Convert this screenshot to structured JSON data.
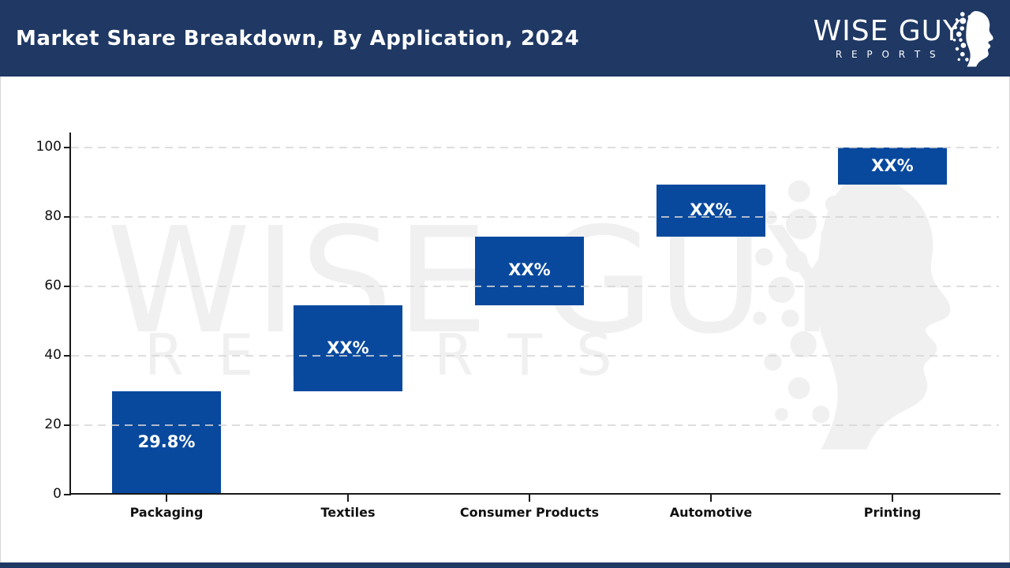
{
  "header": {
    "title": "Market Share Breakdown, By Application, 2024",
    "logo_line1": "WISE GUY",
    "logo_line2": "R E P O R T S"
  },
  "watermark": {
    "line1": "WISE GUY",
    "line2": "R E P O R T S"
  },
  "colors": {
    "header_bg": "#1f3864",
    "bar": "#08499e",
    "bar_label": "#ffffff",
    "axis": "#1a1a1a",
    "grid": "#d9d9d9",
    "watermark": "#f0f0f0"
  },
  "chart_data": {
    "type": "bar",
    "subtype": "waterfall",
    "title": "Market Share Breakdown, By Application, 2024",
    "categories": [
      "Packaging",
      "Textiles",
      "Consumer Products",
      "Automotive",
      "Printing"
    ],
    "segments": [
      {
        "category": "Packaging",
        "start": 0,
        "end": 29.8,
        "label": "29.8%"
      },
      {
        "category": "Textiles",
        "start": 29.8,
        "end": 54.5,
        "label": "XX%"
      },
      {
        "category": "Consumer Products",
        "start": 54.5,
        "end": 74.4,
        "label": "XX%"
      },
      {
        "category": "Automotive",
        "start": 74.4,
        "end": 89.3,
        "label": "XX%"
      },
      {
        "category": "Printing",
        "start": 89.3,
        "end": 100,
        "label": "XX%"
      }
    ],
    "ylim": [
      0,
      100
    ],
    "yticks": [
      0,
      20,
      40,
      60,
      80,
      100
    ],
    "xlabel": "",
    "ylabel": "",
    "grid": "horizontal-dashed",
    "legend": "none"
  }
}
